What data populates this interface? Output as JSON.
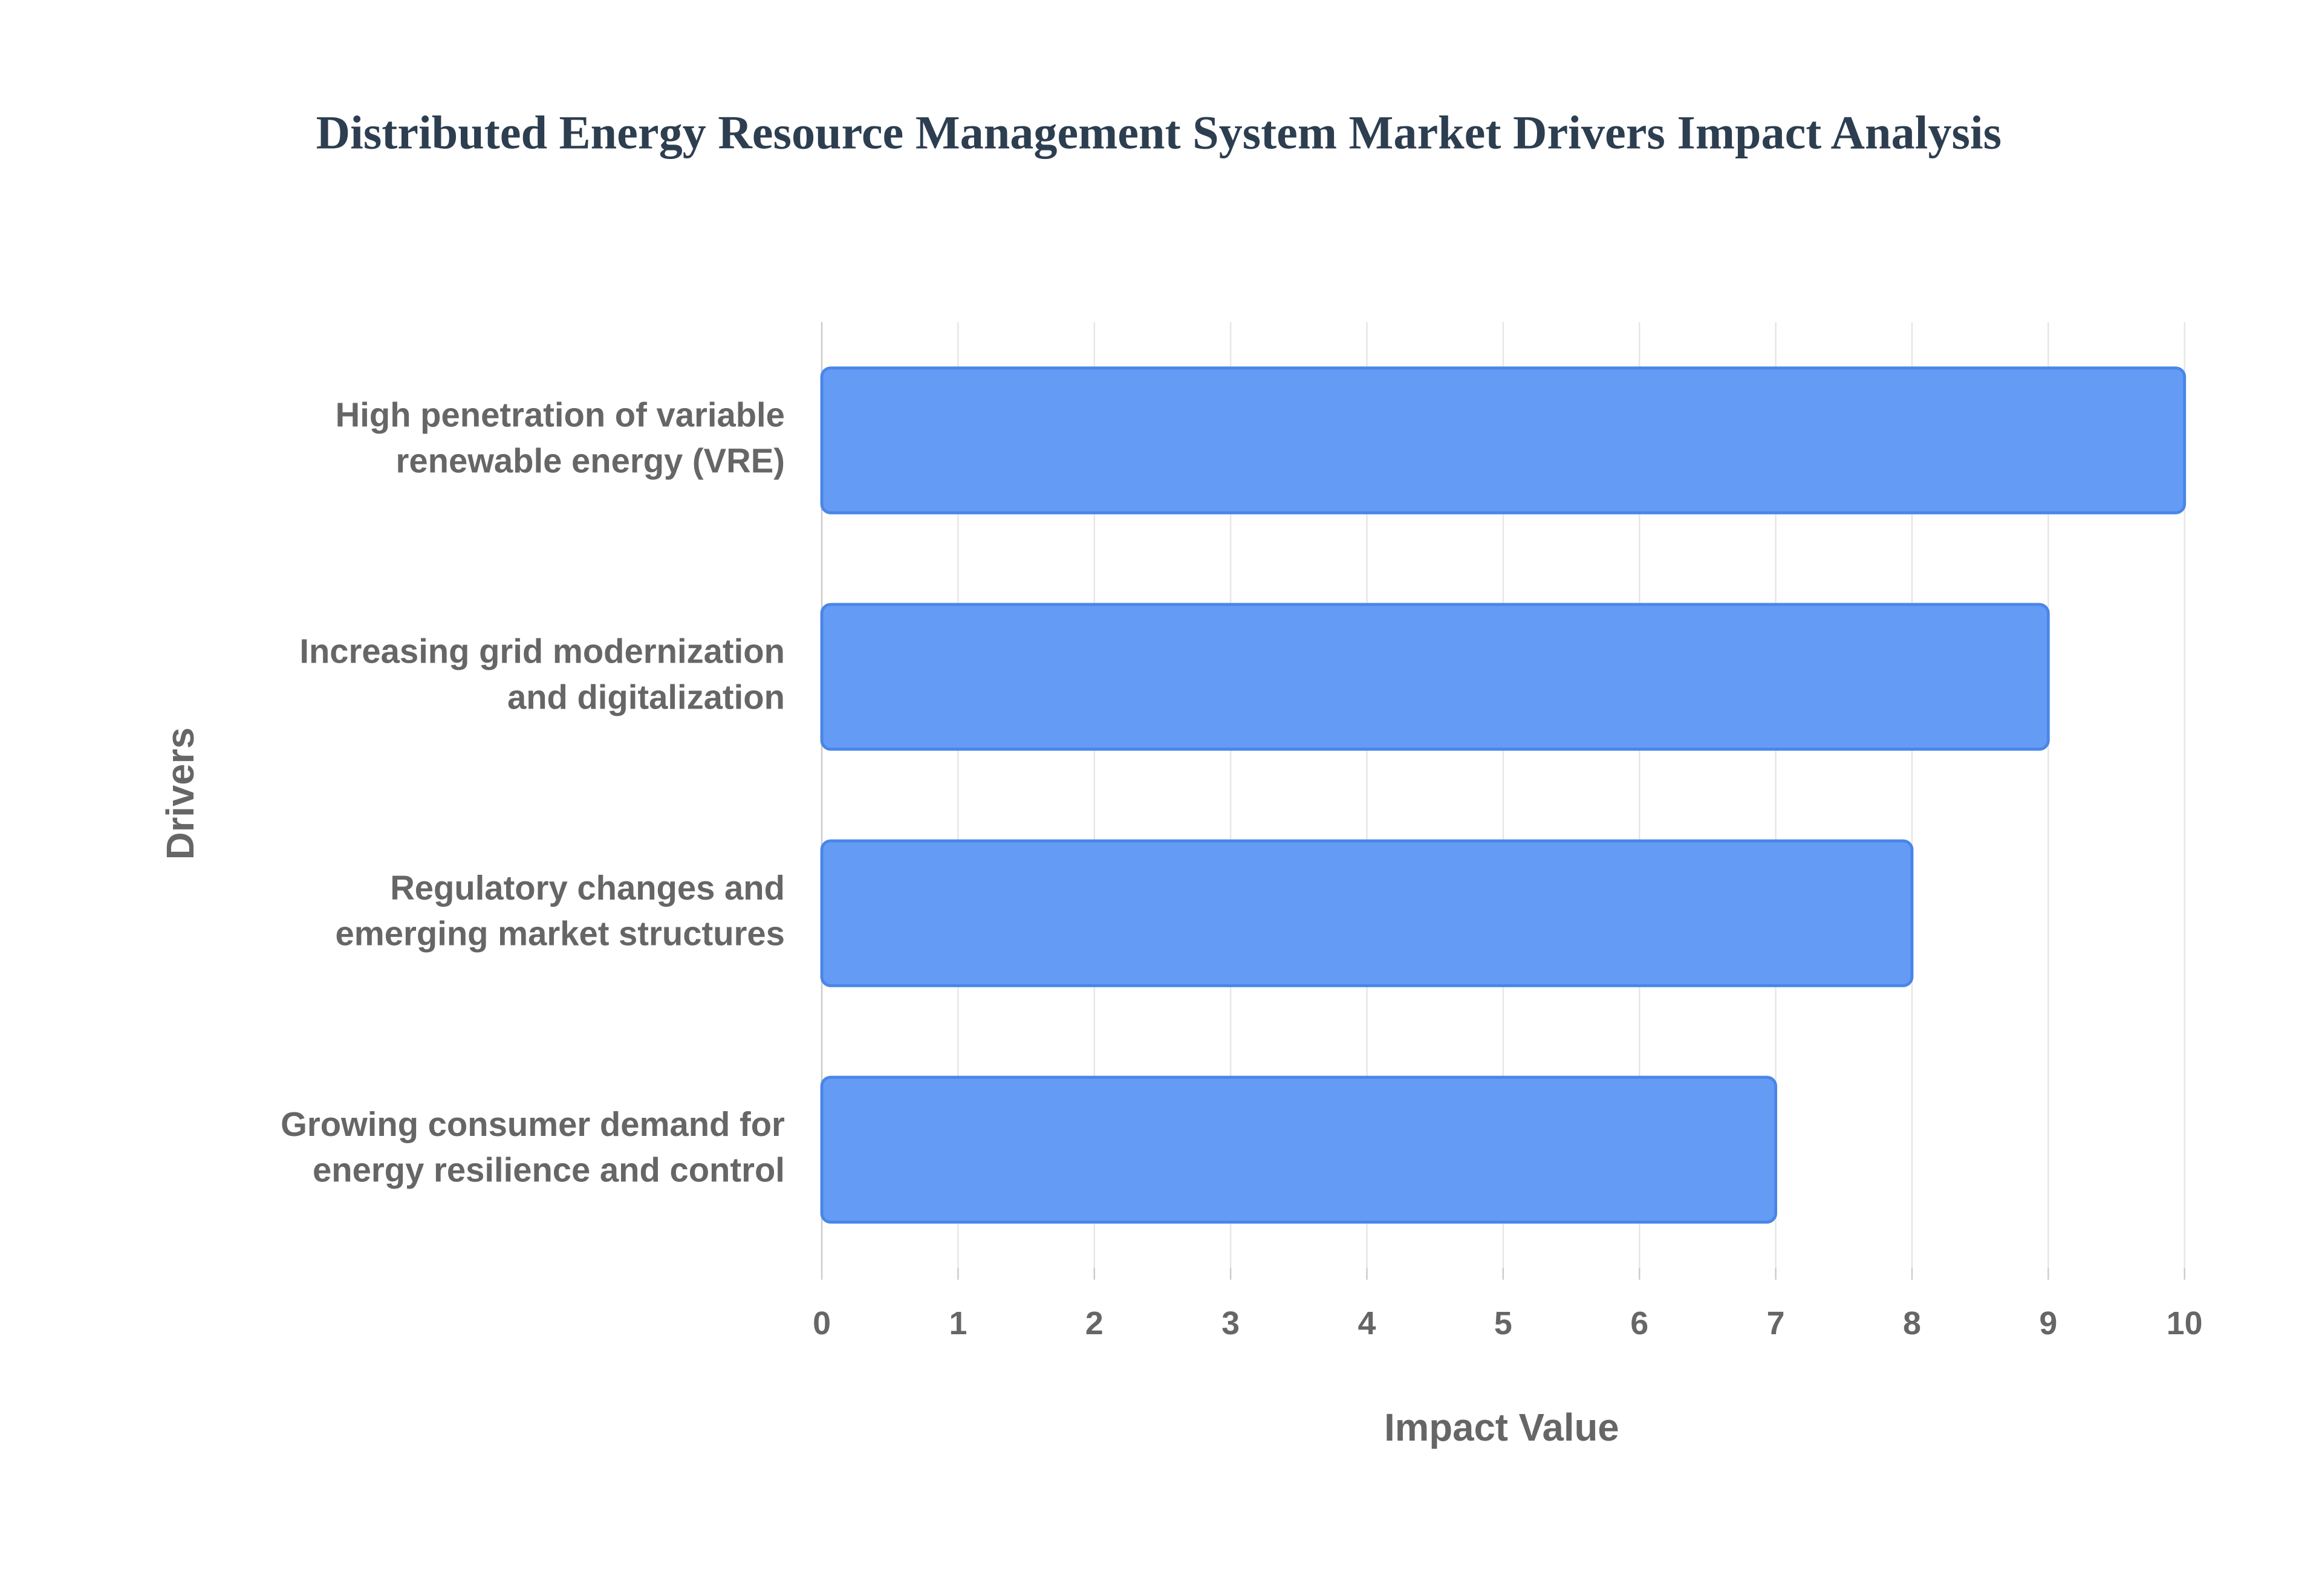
{
  "chart_data": {
    "type": "hbar",
    "title": "Distributed Energy Resource Management System Market Drivers Impact Analysis",
    "x_label": "Impact Value",
    "y_label": "Drivers",
    "categories": [
      [
        "High penetration of variable",
        "renewable energy (VRE)"
      ],
      [
        "Increasing grid modernization",
        "and digitalization"
      ],
      [
        "Regulatory changes and",
        "emerging market structures"
      ],
      [
        "Growing consumer demand for",
        "energy resilience and control"
      ]
    ],
    "values": [
      10,
      9,
      8,
      7
    ],
    "color": "#6199f5",
    "xlim": [
      0,
      10
    ],
    "xticks": [
      0,
      1,
      2,
      3,
      4,
      5,
      6,
      7,
      8,
      9,
      10
    ],
    "grid": true
  }
}
